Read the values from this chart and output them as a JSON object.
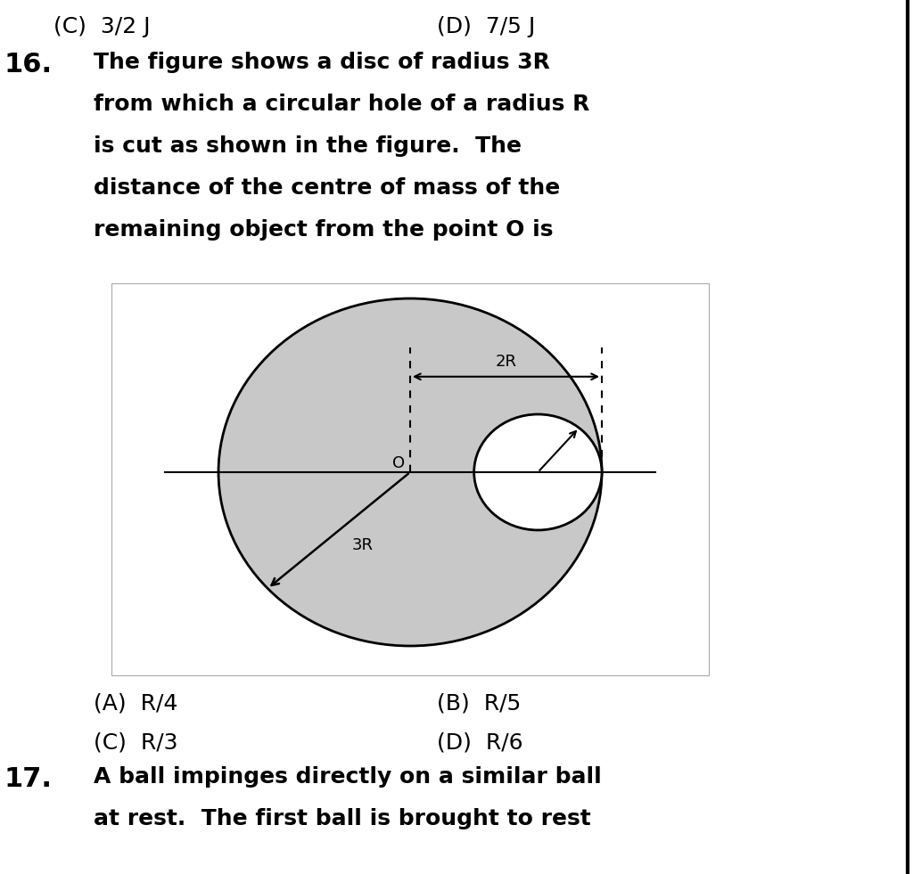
{
  "bg_color": "#ffffff",
  "text_color": "#000000",
  "disc_color": "#c8c8c8",
  "disc_edge_color": "#000000",
  "hole_color": "#ffffff",
  "hole_edge_color": "#000000",
  "label_O": "O",
  "label_2R": "2R",
  "label_3R": "3R",
  "line_color": "#000000",
  "arrow_color": "#000000",
  "dotted_color": "#000000",
  "font_size_diagram": 13,
  "font_size_answer": 18,
  "font_size_text": 18,
  "font_size_num": 22,
  "top_left": "(C)  3/2 J",
  "top_right": "(D)  7/5 J",
  "q16_num": "16.",
  "q16_lines": [
    "The figure shows a disc of radius 3R",
    "from which a circular hole of a radius R",
    "is cut as shown in the figure.  The",
    "distance of the centre of mass of the",
    "remaining object from the point O is"
  ],
  "ans_A": "(A)  R/4",
  "ans_B": "(B)  R/5",
  "ans_C": "(C)  R/3",
  "ans_D": "(D)  R/6",
  "q17_num": "17.",
  "q17_lines": [
    "A ball impinges directly on a similar ball",
    "at rest.  The first ball is brought to rest"
  ],
  "fig_width": 10.24,
  "fig_height": 9.81
}
